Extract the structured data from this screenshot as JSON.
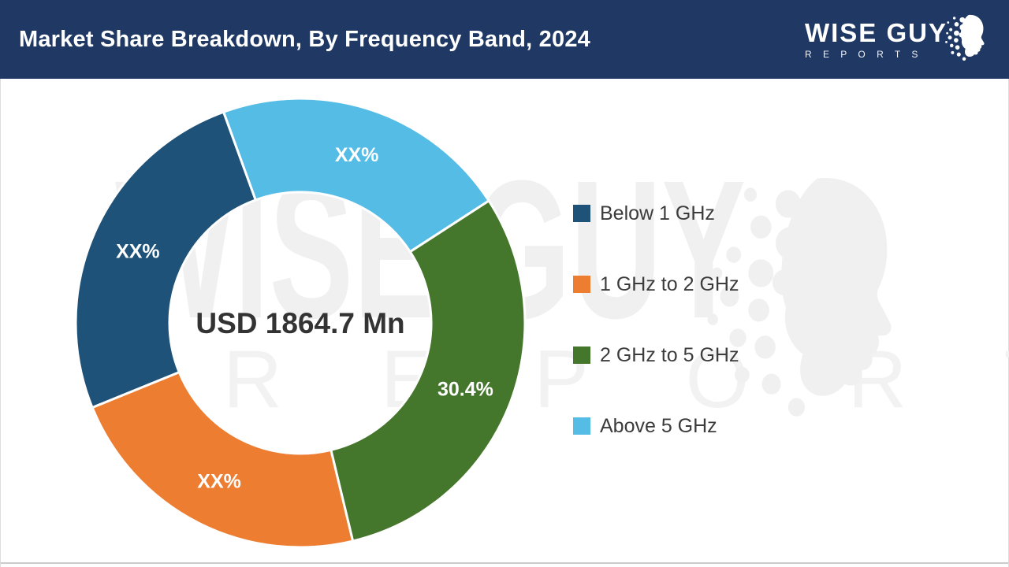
{
  "header": {
    "title": "Market Share Breakdown, By Frequency Band, 2024",
    "logo_line1": "WISE GUY",
    "logo_line2": "R E P O R T S"
  },
  "watermark": {
    "line1": "WISE GUY",
    "line2": "R E P O R T S"
  },
  "chart_data": {
    "type": "pie",
    "subtype": "donut",
    "title": "Market Share Breakdown, By Frequency Band, 2024",
    "center_label": "USD 1864.7 Mn",
    "start_angle_deg": -20,
    "unit": "%",
    "series": [
      {
        "name": "Above 5 GHz",
        "value": 21.4,
        "label": "XX%",
        "color": "#55BCE6"
      },
      {
        "name": "2 GHz to 5 GHz",
        "value": 30.4,
        "label": "30.4%",
        "color": "#44772B"
      },
      {
        "name": "1 GHz to 2 GHz",
        "value": 22.6,
        "label": "XX%",
        "color": "#ED7D31"
      },
      {
        "name": "Below 1 GHz",
        "value": 25.6,
        "label": "XX%",
        "color": "#1F5278"
      }
    ],
    "legend_position": "right"
  },
  "legend": {
    "items": [
      {
        "label": "Below 1 GHz",
        "color": "#1F5278"
      },
      {
        "label": "1 GHz to 2 GHz",
        "color": "#ED7D31"
      },
      {
        "label": "2 GHz to 5 GHz",
        "color": "#44772B"
      },
      {
        "label": "Above 5 GHz",
        "color": "#55BCE6"
      }
    ]
  }
}
